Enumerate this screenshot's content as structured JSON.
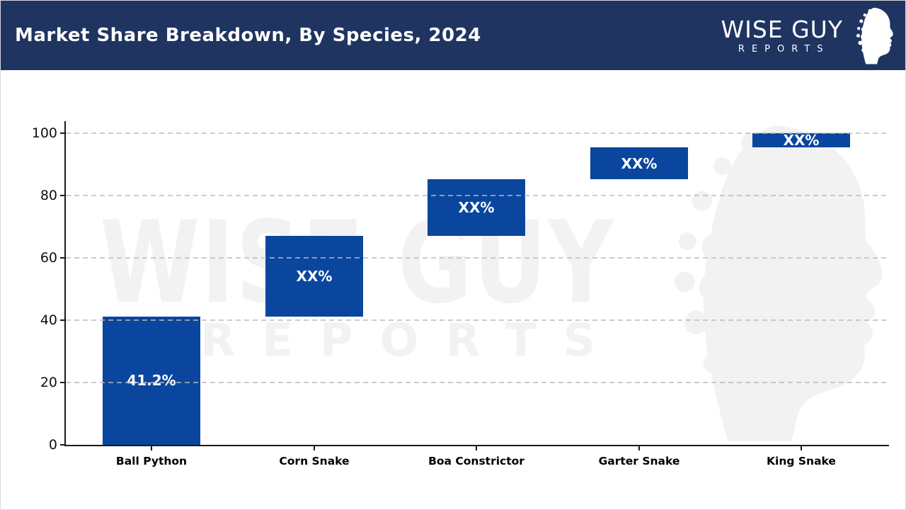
{
  "header": {
    "title": "Market Share Breakdown, By Species, 2024",
    "logo": {
      "line1": "WISE GUY",
      "line2": "REPORTS"
    }
  },
  "watermark": {
    "line1": "WISE GUY",
    "line2": "REPORTS"
  },
  "chart_data": {
    "type": "bar",
    "subtype": "floating-waterfall",
    "title": "Market Share Breakdown, By Species, 2024",
    "categories": [
      "Ball Python",
      "Corn Snake",
      "Boa Constrictor",
      "Garter Snake",
      "King Snake"
    ],
    "series": [
      {
        "name": "Market Share",
        "segments": [
          {
            "category": "Ball Python",
            "start": 0,
            "end": 41.2,
            "label": "41.2%"
          },
          {
            "category": "Corn Snake",
            "start": 41.2,
            "end": 67.0,
            "label": "XX%"
          },
          {
            "category": "Boa Constrictor",
            "start": 67.0,
            "end": 85.2,
            "label": "XX%"
          },
          {
            "category": "Garter Snake",
            "start": 85.2,
            "end": 95.5,
            "label": "XX%"
          },
          {
            "category": "King Snake",
            "start": 95.5,
            "end": 100,
            "label": "XX%"
          }
        ]
      }
    ],
    "yticks": [
      0,
      20,
      40,
      60,
      80,
      100
    ],
    "ylim": [
      0,
      103.9
    ],
    "grid": {
      "axis": "y",
      "style": "dashed",
      "color": "#c9c9c9",
      "over_bars": true
    },
    "legend": null,
    "bar_color": "#0a469e",
    "bar_label_color": "#ffffff"
  },
  "colors": {
    "header_bg": "#1f3461",
    "bar": "#0a469e",
    "axis": "#1a1a1a",
    "grid": "#c9c9c9",
    "watermark": "#f2f2f2",
    "title_text": "#ffffff",
    "label_text": "#000000"
  }
}
